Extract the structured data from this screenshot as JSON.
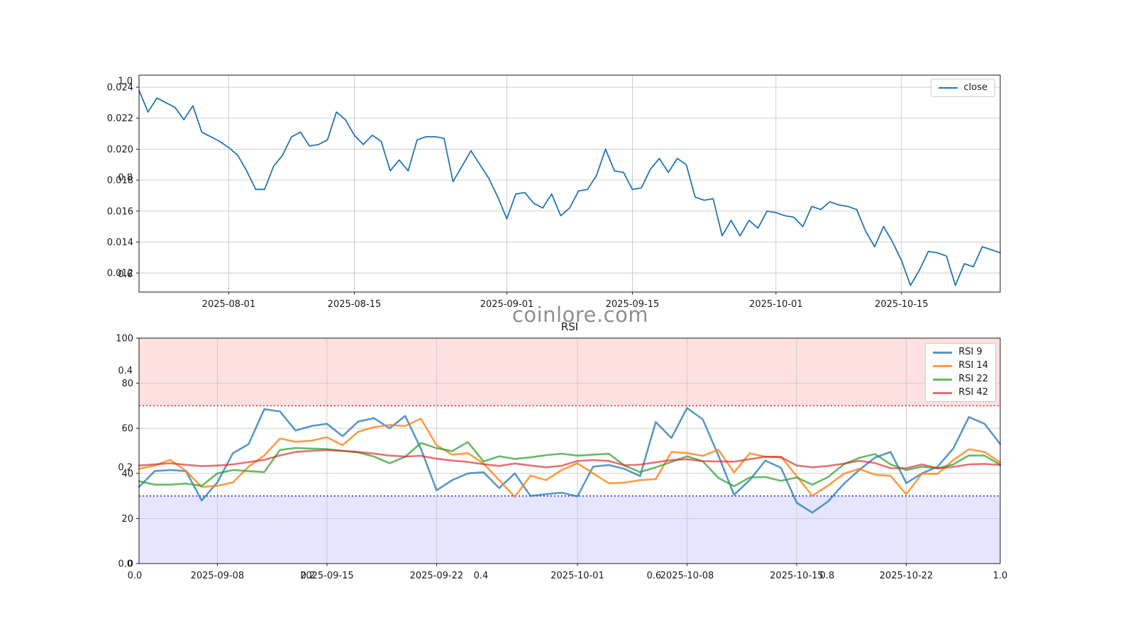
{
  "watermark": "coinlore.com",
  "rsi_chart_title": "RSI",
  "overlay_axis": {
    "yticklabels": [
      "1.0",
      "0.8",
      "0.6",
      "0.4",
      "0.2",
      "0.0"
    ],
    "xticklabels": [
      "0.0",
      "0.2",
      "0.4",
      "0.6",
      "0.8",
      "1.0"
    ]
  },
  "chart_data": [
    {
      "id": "price",
      "type": "line",
      "title": "",
      "ylabel": "",
      "xlabel": "",
      "grid": true,
      "legend_position": "upper right",
      "ylim": [
        0.01077,
        0.02478
      ],
      "yticks": [
        0.024,
        0.022,
        0.02,
        0.018,
        0.016,
        0.014,
        0.012
      ],
      "yticklabels": [
        "0.024",
        "0.022",
        "0.020",
        "0.018",
        "0.016",
        "0.014",
        "0.012"
      ],
      "xtick_dates": [
        "2025-08-01",
        "2025-08-15",
        "2025-09-01",
        "2025-09-15",
        "2025-10-01",
        "2025-10-15"
      ],
      "x": [
        "2025-07-22",
        "2025-07-23",
        "2025-07-24",
        "2025-07-25",
        "2025-07-26",
        "2025-07-27",
        "2025-07-28",
        "2025-07-29",
        "2025-07-30",
        "2025-07-31",
        "2025-08-01",
        "2025-08-02",
        "2025-08-03",
        "2025-08-04",
        "2025-08-05",
        "2025-08-06",
        "2025-08-07",
        "2025-08-08",
        "2025-08-09",
        "2025-08-10",
        "2025-08-11",
        "2025-08-12",
        "2025-08-13",
        "2025-08-14",
        "2025-08-15",
        "2025-08-16",
        "2025-08-17",
        "2025-08-18",
        "2025-08-19",
        "2025-08-20",
        "2025-08-21",
        "2025-08-22",
        "2025-08-23",
        "2025-08-24",
        "2025-08-25",
        "2025-08-26",
        "2025-08-27",
        "2025-08-28",
        "2025-08-29",
        "2025-08-30",
        "2025-08-31",
        "2025-09-01",
        "2025-09-02",
        "2025-09-03",
        "2025-09-04",
        "2025-09-05",
        "2025-09-06",
        "2025-09-07",
        "2025-09-08",
        "2025-09-09",
        "2025-09-10",
        "2025-09-11",
        "2025-09-12",
        "2025-09-13",
        "2025-09-14",
        "2025-09-15",
        "2025-09-16",
        "2025-09-17",
        "2025-09-18",
        "2025-09-19",
        "2025-09-20",
        "2025-09-21",
        "2025-09-22",
        "2025-09-23",
        "2025-09-24",
        "2025-09-25",
        "2025-09-26",
        "2025-09-27",
        "2025-09-28",
        "2025-09-29",
        "2025-09-30",
        "2025-10-01",
        "2025-10-02",
        "2025-10-03",
        "2025-10-04",
        "2025-10-05",
        "2025-10-06",
        "2025-10-07",
        "2025-10-08",
        "2025-10-09",
        "2025-10-10",
        "2025-10-11",
        "2025-10-12",
        "2025-10-13",
        "2025-10-14",
        "2025-10-15",
        "2025-10-16",
        "2025-10-17",
        "2025-10-18",
        "2025-10-19",
        "2025-10-20",
        "2025-10-21",
        "2025-10-22",
        "2025-10-23",
        "2025-10-24",
        "2025-10-25",
        "2025-10-26"
      ],
      "series": [
        {
          "name": "close",
          "color": "#1f77b4",
          "values": [
            0.0238,
            0.0224,
            0.0233,
            0.023,
            0.0227,
            0.0219,
            0.0228,
            0.0211,
            0.0208,
            0.0205,
            0.0201,
            0.0196,
            0.0186,
            0.0174,
            0.0174,
            0.0189,
            0.0196,
            0.0208,
            0.0211,
            0.0202,
            0.0203,
            0.0206,
            0.0224,
            0.0219,
            0.0209,
            0.0203,
            0.0209,
            0.0205,
            0.0186,
            0.0193,
            0.0186,
            0.0206,
            0.0208,
            0.0208,
            0.0207,
            0.0179,
            0.0189,
            0.0199,
            0.019,
            0.0181,
            0.0169,
            0.0155,
            0.0171,
            0.0172,
            0.0165,
            0.0162,
            0.0171,
            0.0157,
            0.0162,
            0.0173,
            0.0174,
            0.0183,
            0.02,
            0.0186,
            0.0185,
            0.0174,
            0.0175,
            0.0187,
            0.0194,
            0.0185,
            0.0194,
            0.019,
            0.0169,
            0.0167,
            0.0168,
            0.0144,
            0.0154,
            0.0144,
            0.0154,
            0.0149,
            0.016,
            0.0159,
            0.0157,
            0.0156,
            0.015,
            0.0163,
            0.0161,
            0.0166,
            0.0164,
            0.0163,
            0.0161,
            0.0147,
            0.0137,
            0.015,
            0.014,
            0.0128,
            0.0112,
            0.0122,
            0.0134,
            0.0133,
            0.0131,
            0.0112,
            0.0126,
            0.0124,
            0.0137,
            0.0135,
            0.0133
          ]
        }
      ]
    },
    {
      "id": "rsi",
      "type": "line",
      "title": "RSI",
      "grid": true,
      "legend_position": "upper right",
      "ylim": [
        0,
        100
      ],
      "yticks": [
        100,
        80,
        60,
        40,
        20,
        0
      ],
      "yticklabels": [
        "100",
        "80",
        "60",
        "40",
        "20",
        "0"
      ],
      "xtick_dates": [
        "2025-09-08",
        "2025-09-15",
        "2025-09-22",
        "2025-10-01",
        "2025-10-08",
        "2025-10-15",
        "2025-10-22"
      ],
      "overbought_band": [
        70,
        100
      ],
      "oversold_band": [
        0,
        30
      ],
      "overbought_line": 70,
      "oversold_line": 30,
      "overbought_band_color": "rgba(255,0,0,0.12)",
      "oversold_band_color": "rgba(0,0,255,0.10)",
      "overbought_line_color": "#ff0000",
      "oversold_line_color": "#0000ff",
      "x": [
        "2025-09-03",
        "2025-09-04",
        "2025-09-05",
        "2025-09-06",
        "2025-09-07",
        "2025-09-08",
        "2025-09-09",
        "2025-09-10",
        "2025-09-11",
        "2025-09-12",
        "2025-09-13",
        "2025-09-14",
        "2025-09-15",
        "2025-09-16",
        "2025-09-17",
        "2025-09-18",
        "2025-09-19",
        "2025-09-20",
        "2025-09-21",
        "2025-09-22",
        "2025-09-23",
        "2025-09-24",
        "2025-09-25",
        "2025-09-26",
        "2025-09-27",
        "2025-09-28",
        "2025-09-29",
        "2025-09-30",
        "2025-10-01",
        "2025-10-02",
        "2025-10-03",
        "2025-10-04",
        "2025-10-05",
        "2025-10-06",
        "2025-10-07",
        "2025-10-08",
        "2025-10-09",
        "2025-10-10",
        "2025-10-11",
        "2025-10-12",
        "2025-10-13",
        "2025-10-14",
        "2025-10-15",
        "2025-10-16",
        "2025-10-17",
        "2025-10-18",
        "2025-10-19",
        "2025-10-20",
        "2025-10-21",
        "2025-10-22",
        "2025-10-23",
        "2025-10-24",
        "2025-10-25",
        "2025-10-26",
        "2025-10-27",
        "2025-10-28"
      ],
      "series": [
        {
          "name": "RSI 9",
          "color": "rgba(31,119,180,0.75)",
          "values": [
            34,
            41,
            41.5,
            41,
            28,
            36,
            49,
            53,
            68.5,
            67.5,
            59,
            61,
            62,
            56.5,
            63,
            64.5,
            60,
            65.5,
            51,
            32.5,
            37,
            40,
            40.5,
            33.5,
            40,
            30,
            30.8,
            31.4,
            29.8,
            43,
            43.7,
            42,
            38.8,
            62.8,
            55.7,
            69,
            64,
            48,
            30.5,
            37,
            45.7,
            42.5,
            27,
            22.6,
            27.5,
            35.3,
            41.5,
            47,
            49.5,
            35.7,
            40,
            43,
            51,
            65,
            62,
            53
          ]
        },
        {
          "name": "RSI 14",
          "color": "rgba(255,127,14,0.78)",
          "values": [
            42,
            43.5,
            46,
            41,
            34,
            34.5,
            36,
            43,
            48,
            55.5,
            54,
            54.5,
            56,
            52.5,
            58.5,
            60.5,
            61.5,
            61,
            64.3,
            52.5,
            48.3,
            49,
            44.4,
            37,
            29.6,
            39,
            37,
            41.5,
            44.5,
            40,
            35.6,
            35.9,
            37,
            37.5,
            49.5,
            49,
            47.8,
            50.5,
            40.4,
            48.9,
            47.4,
            47.4,
            38.8,
            30,
            34.6,
            39.8,
            42,
            39.4,
            38.9,
            30.7,
            39.9,
            39.8,
            45.9,
            50.7,
            49.5,
            44.8
          ]
        },
        {
          "name": "RSI 22",
          "color": "rgba(44,160,44,0.72)",
          "values": [
            36.5,
            35,
            35,
            35.5,
            34.5,
            40,
            41.5,
            41,
            40.6,
            50.4,
            51.3,
            51,
            50.8,
            50,
            49.3,
            47.5,
            44.5,
            47.4,
            53.5,
            51.2,
            49.9,
            53.9,
            45.3,
            47.6,
            46.4,
            47.1,
            48.1,
            48.7,
            47.9,
            48.3,
            48.7,
            43.5,
            40.6,
            42.7,
            45.1,
            47.6,
            45.4,
            38,
            34.3,
            38.2,
            38.4,
            36.7,
            38.2,
            35,
            38.4,
            44,
            46.9,
            48.6,
            44,
            41.5,
            43,
            42.3,
            44,
            48,
            47.9,
            43.8
          ]
        },
        {
          "name": "RSI 42",
          "color": "rgba(214,39,40,0.65)",
          "values": [
            43.5,
            44,
            44.5,
            43.8,
            43.2,
            43.5,
            44,
            45,
            46,
            48,
            49.5,
            50,
            50.3,
            50,
            49.5,
            48.8,
            47.9,
            47.5,
            47.8,
            46.5,
            45.7,
            45.1,
            44.1,
            43.3,
            44.4,
            43.5,
            42.7,
            43.4,
            45.5,
            45.9,
            45.5,
            43.6,
            43.9,
            44.9,
            45.9,
            46.3,
            45.4,
            45.3,
            45.2,
            46.3,
            47.4,
            47.2,
            43.5,
            42.7,
            43.3,
            44.3,
            45.6,
            44.6,
            42.3,
            42.3,
            44,
            42.2,
            42.9,
            44,
            44.2,
            43.7
          ]
        }
      ]
    }
  ]
}
